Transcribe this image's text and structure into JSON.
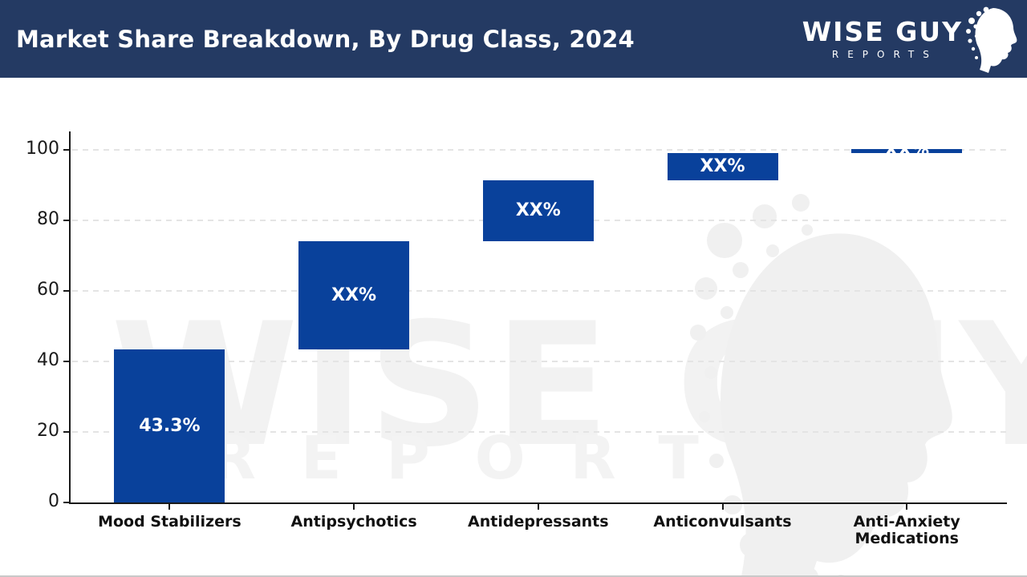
{
  "header": {
    "title": "Market Share Breakdown, By Drug Class, 2024",
    "bg_color": "#243a63",
    "logo": {
      "line1": "WISE GUY",
      "line2": "REPORTS"
    }
  },
  "watermark": {
    "line1": "WISE GUY",
    "line2": "REPORTS"
  },
  "chart_data": {
    "type": "bar",
    "variant": "waterfall",
    "title": "Market Share Breakdown, By Drug Class, 2024",
    "categories": [
      "Mood Stabilizers",
      "Antipsychotics",
      "Antidepressants",
      "Anticonvulsants",
      "Anti-Anxiety Medications"
    ],
    "segments": [
      {
        "category": "Mood Stabilizers",
        "start": 0,
        "end": 43.3,
        "label": "43.3%"
      },
      {
        "category": "Antipsychotics",
        "start": 43.3,
        "end": 74.1,
        "label": "XX%"
      },
      {
        "category": "Antidepressants",
        "start": 74.1,
        "end": 91.2,
        "label": "XX%"
      },
      {
        "category": "Anticonvulsants",
        "start": 91.2,
        "end": 99.0,
        "label": "XX%"
      },
      {
        "category": "Anti-Anxiety Medications",
        "start": 99.0,
        "end": 100.2,
        "label": "XX%"
      }
    ],
    "xlabel": "",
    "ylabel": "",
    "ylim": [
      0,
      105
    ],
    "yticks": [
      0,
      20,
      40,
      60,
      80,
      100
    ],
    "grid": "horizontal-dashed",
    "legend": null,
    "bar_color": "#09419b",
    "bar_label_color": "#ffffff",
    "axis_color": "#1a1a1a"
  }
}
